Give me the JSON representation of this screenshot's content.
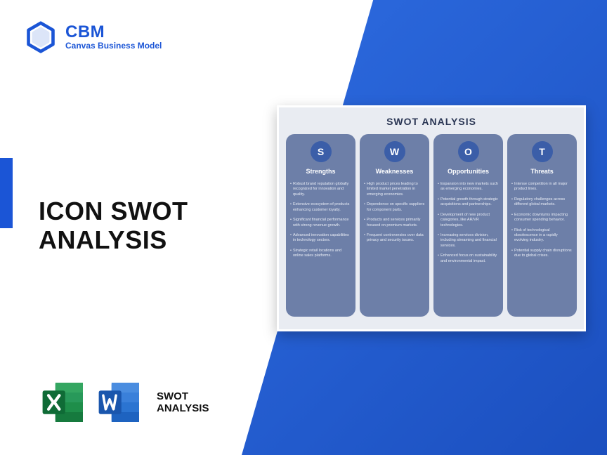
{
  "brand": {
    "abbr": "CBM",
    "name": "Canvas Business Model",
    "logo_color": "#1b55d6"
  },
  "title_line1": "ICON SWOT",
  "title_line2": "ANALYSIS",
  "footer_label_line1": "SWOT",
  "footer_label_line2": "ANALYSIS",
  "colors": {
    "diag_start": "#2d6be0",
    "diag_end": "#1b4fbf",
    "accent": "#1b55d6",
    "card_bg": "#e9ecf2",
    "col_bg": "#6d7fa8",
    "letter_bg": "#3b5ea8",
    "excel_green": "#1e8e4a",
    "excel_green_dark": "#0f6b36",
    "word_blue": "#2b74d1",
    "word_blue_dark": "#1a56ad"
  },
  "swot": {
    "title": "SWOT ANALYSIS",
    "columns": [
      {
        "letter": "S",
        "heading": "Strengths",
        "items": [
          "Robust brand reputation globally recognized for innovation and quality.",
          "Extensive ecosystem of products enhancing customer loyalty.",
          "Significant financial performance with strong revenue growth.",
          "Advanced innovation capabilities in technology sectors.",
          "Strategic retail locations and online sales platforms."
        ]
      },
      {
        "letter": "W",
        "heading": "Weaknesses",
        "items": [
          "High product prices leading to limited market penetration in emerging economies.",
          "Dependence on specific suppliers for component parts.",
          "Products and services primarily focused on premium markets.",
          "Frequent controversies over data privacy and security issues."
        ]
      },
      {
        "letter": "O",
        "heading": "Opportunities",
        "items": [
          "Expansion into new markets such as emerging economies.",
          "Potential growth through strategic acquisitions and partnerships.",
          "Development of new product categories, like AR/VR technologies.",
          "Increasing services division, including streaming and financial services.",
          "Enhanced focus on sustainability and environmental impact."
        ]
      },
      {
        "letter": "T",
        "heading": "Threats",
        "items": [
          "Intense competition in all major product lines.",
          "Regulatory challenges across different global markets.",
          "Economic downturns impacting consumer spending behavior.",
          "Risk of technological obsolescence in a rapidly evolving industry.",
          "Potential supply chain disruptions due to global crises."
        ]
      }
    ]
  }
}
